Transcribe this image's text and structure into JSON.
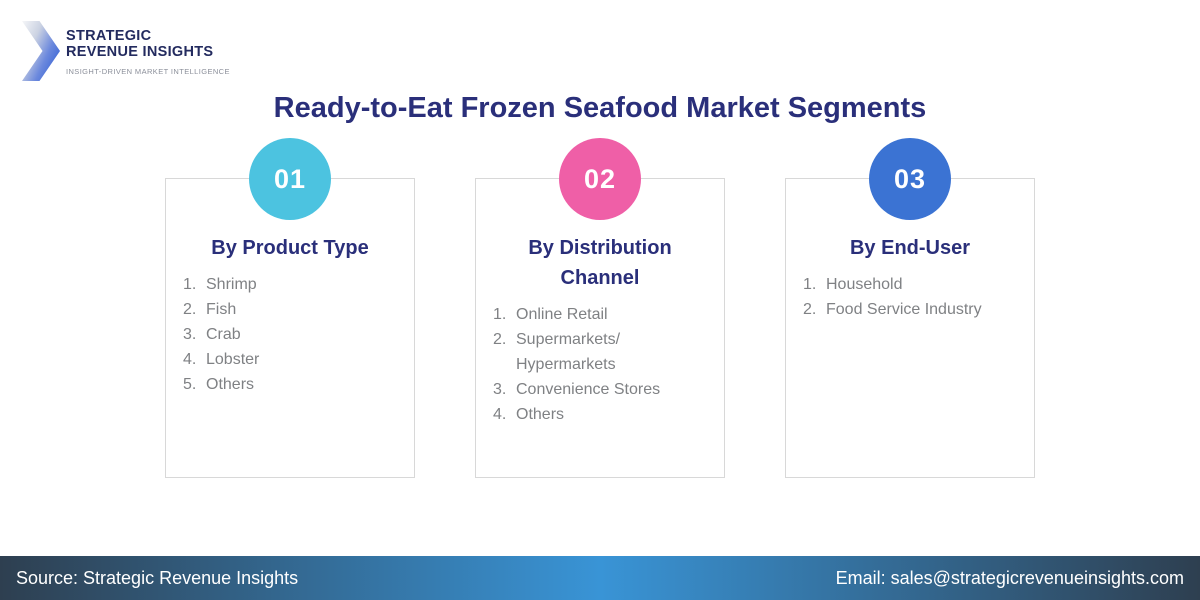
{
  "brand": {
    "name_line1": "STRATEGIC",
    "name_line2": "REVENUE INSIGHTS",
    "tagline": "INSIGHT-DRIVEN MARKET INTELLIGENCE",
    "logo_icon": "chevron-right-icon"
  },
  "title": "Ready-to-Eat Frozen Seafood Market Segments",
  "cards": [
    {
      "badge": "01",
      "badge_color": "#4cc3e0",
      "title": "By Product Type",
      "items": [
        "Shrimp",
        "Fish",
        "Crab",
        "Lobster",
        "Others"
      ]
    },
    {
      "badge": "02",
      "badge_color": "#ef5fa7",
      "title": "By Distribution Channel",
      "items": [
        "Online Retail",
        "Supermarkets/ Hypermarkets",
        "Convenience Stores",
        "Others"
      ]
    },
    {
      "badge": "03",
      "badge_color": "#3b73d3",
      "title": "By End-User",
      "items": [
        "Household",
        "Food Service Industry"
      ]
    }
  ],
  "footer": {
    "source": "Source: Strategic Revenue Insights",
    "email": "Email: sales@strategicrevenueinsights.com"
  },
  "colors": {
    "heading_navy": "#2a2f7a",
    "list_gray": "#7f8184",
    "card_border": "#d8d8d8",
    "footer_dark": "#2e3f50",
    "footer_blue": "#3994d6",
    "logo_navy": "#232b5f",
    "logo_gray": "#8b8f9a",
    "logo_chevron_blue": "#3e68d6"
  }
}
